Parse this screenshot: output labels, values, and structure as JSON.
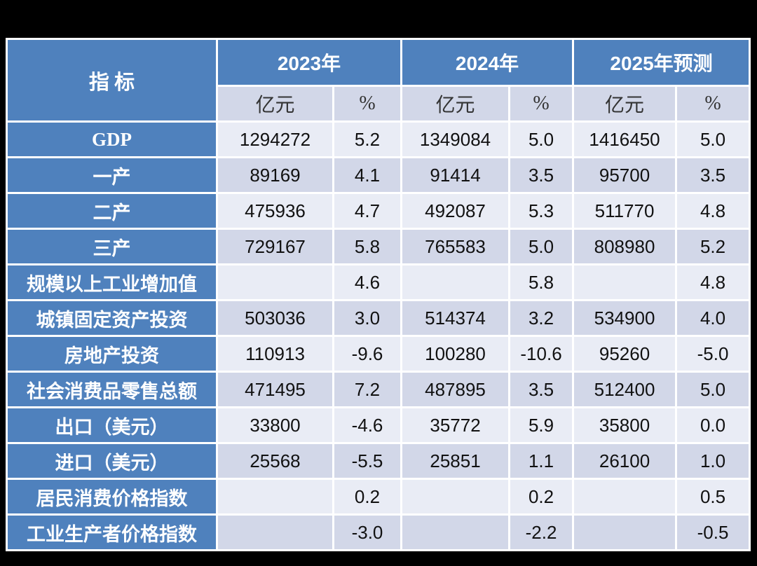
{
  "colors": {
    "header_blue": "#4f81bd",
    "band_light": "#e9ecf5",
    "band_dark": "#d2d7e8",
    "border_white": "#ffffff",
    "header_text": "#ffffff",
    "subheader_text": "#333333",
    "number_text": "#111111",
    "page_background": "#000000"
  },
  "chart_data": {
    "type": "table",
    "title": "",
    "header": {
      "indicator": "指 标",
      "groups": [
        {
          "label": "2023年",
          "sub": [
            "亿元",
            "%"
          ]
        },
        {
          "label": "2024年",
          "sub": [
            "亿元",
            "%"
          ]
        },
        {
          "label": "2025年预测",
          "sub": [
            "亿元",
            "%"
          ]
        }
      ]
    },
    "rows": [
      {
        "label": "GDP",
        "values": [
          "1294272",
          "5.2",
          "1349084",
          "5.0",
          "1416450",
          "5.0"
        ]
      },
      {
        "label": "一产",
        "values": [
          "89169",
          "4.1",
          "91414",
          "3.5",
          "95700",
          "3.5"
        ]
      },
      {
        "label": "二产",
        "values": [
          "475936",
          "4.7",
          "492087",
          "5.3",
          "511770",
          "4.8"
        ]
      },
      {
        "label": "三产",
        "values": [
          "729167",
          "5.8",
          "765583",
          "5.0",
          "808980",
          "5.2"
        ]
      },
      {
        "label": "规模以上工业增加值",
        "values": [
          "",
          "4.6",
          "",
          "5.8",
          "",
          "4.8"
        ]
      },
      {
        "label": "城镇固定资产投资",
        "values": [
          "503036",
          "3.0",
          "514374",
          "3.2",
          "534900",
          "4.0"
        ]
      },
      {
        "label": "房地产投资",
        "values": [
          "110913",
          "-9.6",
          "100280",
          "-10.6",
          "95260",
          "-5.0"
        ]
      },
      {
        "label": "社会消费品零售总额",
        "values": [
          "471495",
          "7.2",
          "487895",
          "3.5",
          "512400",
          "5.0"
        ]
      },
      {
        "label": "出口（美元）",
        "values": [
          "33800",
          "-4.6",
          "35772",
          "5.9",
          "35800",
          "0.0"
        ]
      },
      {
        "label": "进口（美元）",
        "values": [
          "25568",
          "-5.5",
          "25851",
          "1.1",
          "26100",
          "1.0"
        ]
      },
      {
        "label": "居民消费价格指数",
        "values": [
          "",
          "0.2",
          "",
          "0.2",
          "",
          "0.5"
        ]
      },
      {
        "label": "工业生产者价格指数",
        "values": [
          "",
          "-3.0",
          "",
          "-2.2",
          "",
          "-0.5"
        ]
      }
    ]
  }
}
